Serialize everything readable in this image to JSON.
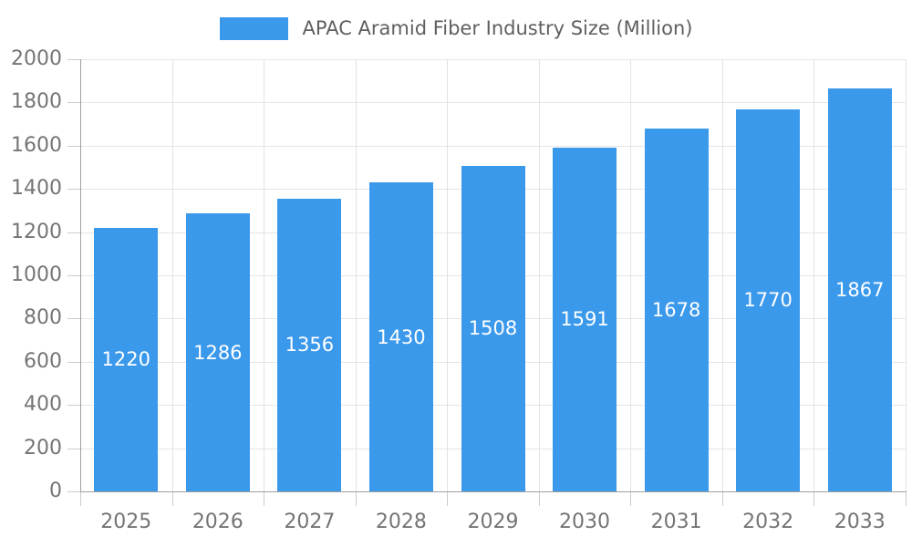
{
  "chart_data": {
    "type": "bar",
    "title": "APAC Aramid Fiber Industry Size (Million)",
    "categories": [
      "2025",
      "2026",
      "2027",
      "2028",
      "2029",
      "2030",
      "2031",
      "2032",
      "2033"
    ],
    "values": [
      1220,
      1286,
      1356,
      1430,
      1508,
      1591,
      1678,
      1770,
      1867
    ],
    "series": [
      {
        "name": "APAC Aramid Fiber Industry Size (Million)",
        "values": [
          1220,
          1286,
          1356,
          1430,
          1508,
          1591,
          1678,
          1770,
          1867
        ]
      }
    ],
    "xlabel": "",
    "ylabel": "",
    "ylim": [
      0,
      2000
    ],
    "ytick_step": 200,
    "ytick_labels": [
      "0",
      "200",
      "400",
      "600",
      "800",
      "1000",
      "1200",
      "1400",
      "1600",
      "1800",
      "2000"
    ],
    "grid": true,
    "legend_position": "top",
    "value_labels": "inside-center-white",
    "colors": {
      "bar": "#3b99ec",
      "bar_value_label": "#ffffff",
      "axis_line": "#9e9e9e",
      "tick": "#cccccc",
      "gridline": "#e5e5e5",
      "axis_text": "#757575",
      "legend_text": "#5f5f5f",
      "background": "#ffffff"
    }
  }
}
